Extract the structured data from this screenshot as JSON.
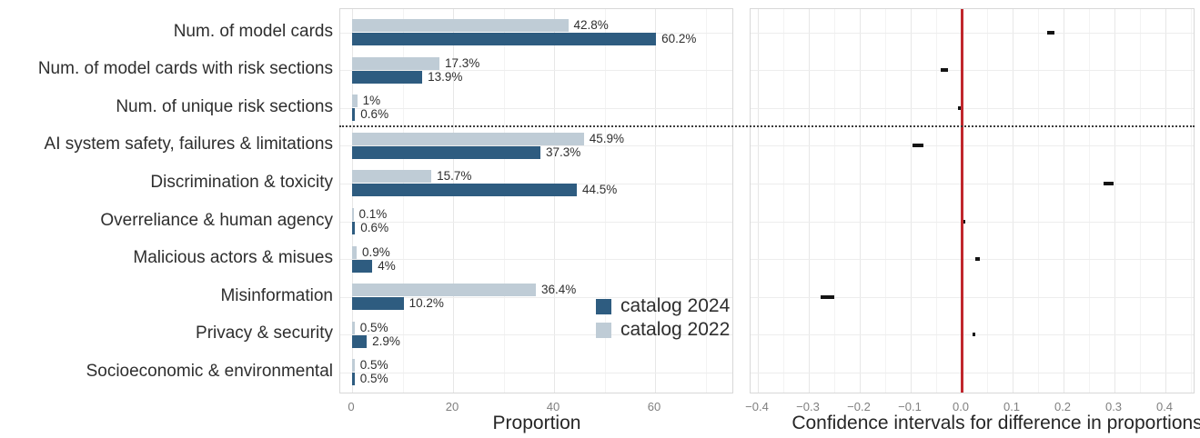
{
  "colors": {
    "catalog_2024": "#2e5c80",
    "catalog_2022": "#bfccd6",
    "zero_line": "#c0272d",
    "ci_mark": "#141414",
    "separator": "#3c3c3c"
  },
  "chart_data": [
    {
      "type": "bar",
      "orientation": "horizontal",
      "xlabel": "Proportion",
      "x_ticks": [
        0,
        20,
        40,
        60
      ],
      "x_tick_labels": [
        "0",
        "20",
        "40",
        "60"
      ],
      "xlim": [
        -2.3,
        75.6
      ],
      "grid": true,
      "categories": [
        "Num. of model cards",
        "Num. of model cards with risk sections",
        "Num. of unique risk sections",
        "AI system safety, failures & limitations",
        "Discrimination & toxicity",
        "Overreliance & human agency",
        "Malicious actors & misues",
        "Misinformation",
        "Privacy & security",
        "Socioeconomic & environmental"
      ],
      "separator_after_index": 2,
      "series": [
        {
          "name": "catalog 2024",
          "color": "#2e5c80",
          "values": [
            60.2,
            13.9,
            0.6,
            37.3,
            44.5,
            0.6,
            4,
            10.2,
            2.9,
            0.5
          ],
          "labels": [
            "60.2%",
            "13.9%",
            "0.6%",
            "37.3%",
            "44.5%",
            "0.6%",
            "4%",
            "10.2%",
            "2.9%",
            "0.5%"
          ]
        },
        {
          "name": "catalog 2022",
          "color": "#bfccd6",
          "values": [
            42.8,
            17.3,
            1,
            45.9,
            15.7,
            0.1,
            0.9,
            36.4,
            0.5,
            0.5
          ],
          "labels": [
            "42.8%",
            "17.3%",
            "1%",
            "45.9%",
            "15.7%",
            "0.1%",
            "0.9%",
            "36.4%",
            "0.5%",
            "0.5%"
          ]
        }
      ],
      "legend": {
        "position": "inside-right",
        "order": [
          "catalog 2024",
          "catalog 2022"
        ]
      }
    },
    {
      "type": "ci",
      "xlabel": "Confidence intervals for difference in proportions",
      "x_ticks": [
        -0.4,
        -0.3,
        -0.2,
        -0.1,
        0.0,
        0.1,
        0.2,
        0.3,
        0.4
      ],
      "x_tick_labels": [
        "−0.4",
        "−0.3",
        "−0.2",
        "−0.1",
        "0.0",
        "0.1",
        "0.2",
        "0.3",
        "0.4"
      ],
      "xlim": [
        -0.418,
        0.459
      ],
      "zero_line": 0.0,
      "grid": true,
      "intervals": [
        {
          "category": "Num. of model cards",
          "low": 0.167,
          "high": 0.182
        },
        {
          "category": "Num. of model cards with risk sections",
          "low": -0.041,
          "high": -0.027
        },
        {
          "category": "Num. of unique risk sections",
          "low": -0.007,
          "high": -0.001
        },
        {
          "category": "AI system safety, failures & limitations",
          "low": -0.097,
          "high": -0.075
        },
        {
          "category": "Discrimination & toxicity",
          "low": 0.278,
          "high": 0.298
        },
        {
          "category": "Overreliance & human agency",
          "low": 0.003,
          "high": 0.007
        },
        {
          "category": "Malicious actors & misues",
          "low": 0.026,
          "high": 0.036
        },
        {
          "category": "Misinformation",
          "low": -0.276,
          "high": -0.249
        },
        {
          "category": "Privacy & security",
          "low": 0.021,
          "high": 0.027
        },
        {
          "category": "Socioeconomic & environmental",
          "low": -0.002,
          "high": 0.002
        }
      ]
    }
  ]
}
